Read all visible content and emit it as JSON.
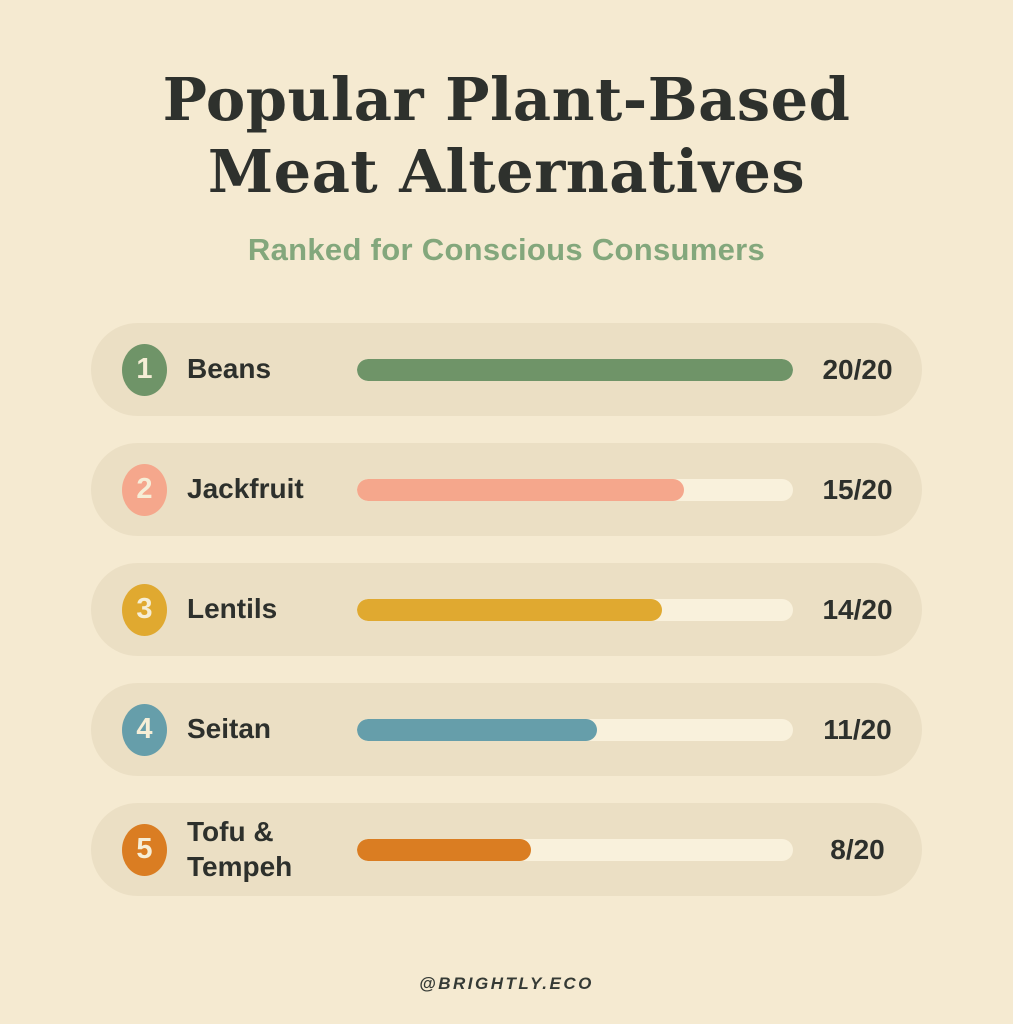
{
  "title": {
    "line1": "Popular Plant-Based",
    "line2": "Meat Alternatives"
  },
  "subtitle": "Ranked for Conscious Consumers",
  "footer": "@BRIGHTLY.ECO",
  "colors": {
    "page_background": "#f5ead1",
    "card_background": "#ebdfc4",
    "track_background": "#f9f1dc",
    "title_text": "#2e312d",
    "subtitle_text": "#83a77c",
    "body_text": "#2d302c",
    "badge_number_text": "#f6eed6",
    "green": "#6f9468",
    "salmon": "#f5a78c",
    "mustard": "#e0a930",
    "teal": "#669eaa",
    "orange": "#da7d22"
  },
  "chart_data": {
    "type": "bar",
    "title": "Popular Plant-Based Meat Alternatives",
    "subtitle": "Ranked for Conscious Consumers",
    "orientation": "horizontal",
    "max_score": 20,
    "categories": [
      "Beans",
      "Jackfruit",
      "Lentils",
      "Seitan",
      "Tofu & Tempeh"
    ],
    "values": [
      20,
      15,
      14,
      11,
      8
    ],
    "items": [
      {
        "rank": "1",
        "label": "Beans",
        "score": 20,
        "score_text": "20/20",
        "color": "#6f9468"
      },
      {
        "rank": "2",
        "label": "Jackfruit",
        "score": 15,
        "score_text": "15/20",
        "color": "#f5a78c"
      },
      {
        "rank": "3",
        "label": "Lentils",
        "score": 14,
        "score_text": "14/20",
        "color": "#e0a930"
      },
      {
        "rank": "4",
        "label": "Seitan",
        "score": 11,
        "score_text": "11/20",
        "color": "#669eaa"
      },
      {
        "rank": "5",
        "label": "Tofu & Tempeh",
        "score": 8,
        "score_text": "8/20",
        "color": "#da7d22"
      }
    ]
  }
}
